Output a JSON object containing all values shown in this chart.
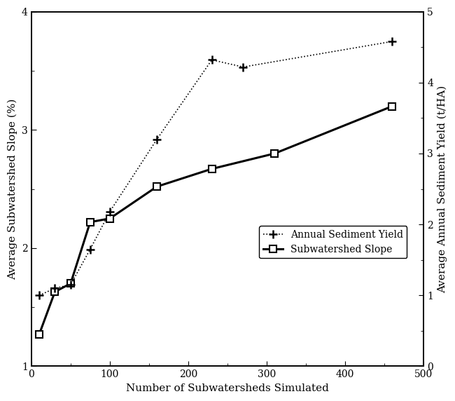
{
  "slope_x": [
    10,
    30,
    50,
    75,
    100,
    160,
    230,
    310,
    460
  ],
  "slope_y": [
    1.27,
    1.63,
    1.7,
    2.22,
    2.25,
    2.52,
    2.67,
    2.8,
    3.2
  ],
  "sediment_x": [
    10,
    30,
    50,
    75,
    100,
    160,
    230,
    270,
    460
  ],
  "sediment_y": [
    1.0,
    1.1,
    1.15,
    1.65,
    2.18,
    3.2,
    4.32,
    4.22,
    4.58
  ],
  "xlabel": "Number of Subwatersheds Simulated",
  "ylabel_left": "Average Subwatershed Slope (%)",
  "ylabel_right": "Average Annual Sediment Yield (t/HA)",
  "xlim": [
    0,
    500
  ],
  "ylim_left": [
    1.0,
    4.0
  ],
  "ylim_right": [
    0,
    5
  ],
  "xticks": [
    0,
    100,
    200,
    300,
    400,
    500
  ],
  "yticks_left": [
    1,
    2,
    3,
    4
  ],
  "yticks_right": [
    0,
    1,
    2,
    3,
    4,
    5
  ],
  "legend_sediment": "Annual Sediment Yield",
  "legend_slope": "Subwatershed Slope",
  "bg_color": "#ffffff",
  "line_color": "#000000"
}
